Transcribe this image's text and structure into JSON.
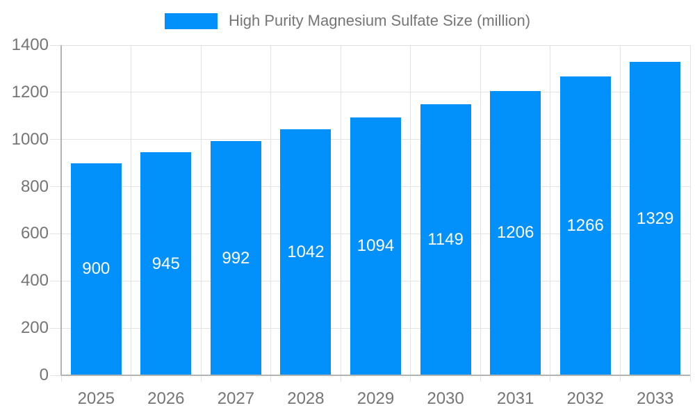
{
  "legend": {
    "swatch": "blue-square",
    "label": "High Purity Magnesium Sulfate Size (million)"
  },
  "chart_data": {
    "type": "bar",
    "title": "High Purity Magnesium Sulfate Size (million)",
    "categories": [
      "2025",
      "2026",
      "2027",
      "2028",
      "2029",
      "2030",
      "2031",
      "2032",
      "2033"
    ],
    "values": [
      900,
      945,
      992,
      1042,
      1094,
      1149,
      1206,
      1266,
      1329
    ],
    "xlabel": "",
    "ylabel": "",
    "ylim": [
      0,
      1400
    ],
    "yticks": [
      0,
      200,
      400,
      600,
      800,
      1000,
      1200,
      1400
    ],
    "grid": true,
    "legend_position": "top-center",
    "value_labels": "centered-inside-bars",
    "colors": {
      "bar": "#0290fa",
      "axis_text": "#757575",
      "grid": "#e2e2e2",
      "axis_line": "#b3b3b3",
      "value_label": "#ffffff",
      "background": "#ffffff"
    }
  }
}
